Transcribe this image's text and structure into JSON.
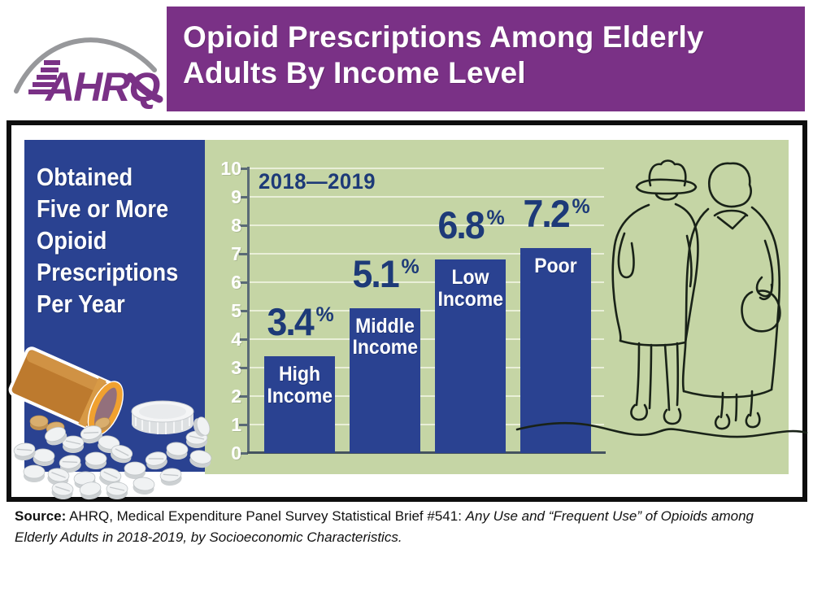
{
  "header": {
    "logo_text": "AHRQ",
    "title_line1": "Opioid Prescriptions Among Elderly",
    "title_line2": "Adults By Income Level"
  },
  "callout": {
    "text": "Obtained\nFive or More\nOpioid\nPrescriptions\nPer Year"
  },
  "chart_data": {
    "type": "bar",
    "title": "Opioid Prescriptions Among Elderly Adults By Income Level",
    "subtitle": "2018—2019",
    "categories": [
      "High Income",
      "Middle Income",
      "Low Income",
      "Poor"
    ],
    "values": [
      3.4,
      5.1,
      6.8,
      7.2
    ],
    "value_labels": [
      "3.4",
      "5.1",
      "6.8",
      "7.2"
    ],
    "bar_label_lines": [
      "High\nIncome",
      "Middle\nIncome",
      "Low\nIncome",
      "Poor"
    ],
    "unit": "%",
    "xlabel": "",
    "ylabel": "",
    "ylim": [
      0,
      10
    ],
    "yticks": [
      0,
      1,
      2,
      3,
      4,
      5,
      6,
      7,
      8,
      9,
      10
    ],
    "grid": true,
    "legend": "none",
    "bar_labels_position": "inside-top"
  },
  "source": {
    "label": "Source:",
    "text_regular": " AHRQ, Medical Expenditure Panel Survey Statistical Brief #541: ",
    "text_italic": "Any Use and “Frequent Use” of Opioids among Elderly Adults in 2018-2019, by Socioeconomic Characteristics."
  },
  "illustrations": {
    "pill_bottle": "pill-bottle-illustration",
    "elderly_couple": "elderly-couple-illustration",
    "logo_arc": "ahrq-logo-arc-icon"
  },
  "colors": {
    "purple": "#7a3186",
    "navy_panel": "#2a4291",
    "navy_bar": "#2a4291",
    "navy_text": "#1d3a78",
    "green_bg": "#c5d5a5",
    "gridline": "#e9efd8",
    "axis": "#5a6a76",
    "baseline": "#44535f",
    "bottle_amber": "#bd7a2e",
    "bottle_rim": "#f0a130",
    "pill_white": "#f0f2f3"
  }
}
